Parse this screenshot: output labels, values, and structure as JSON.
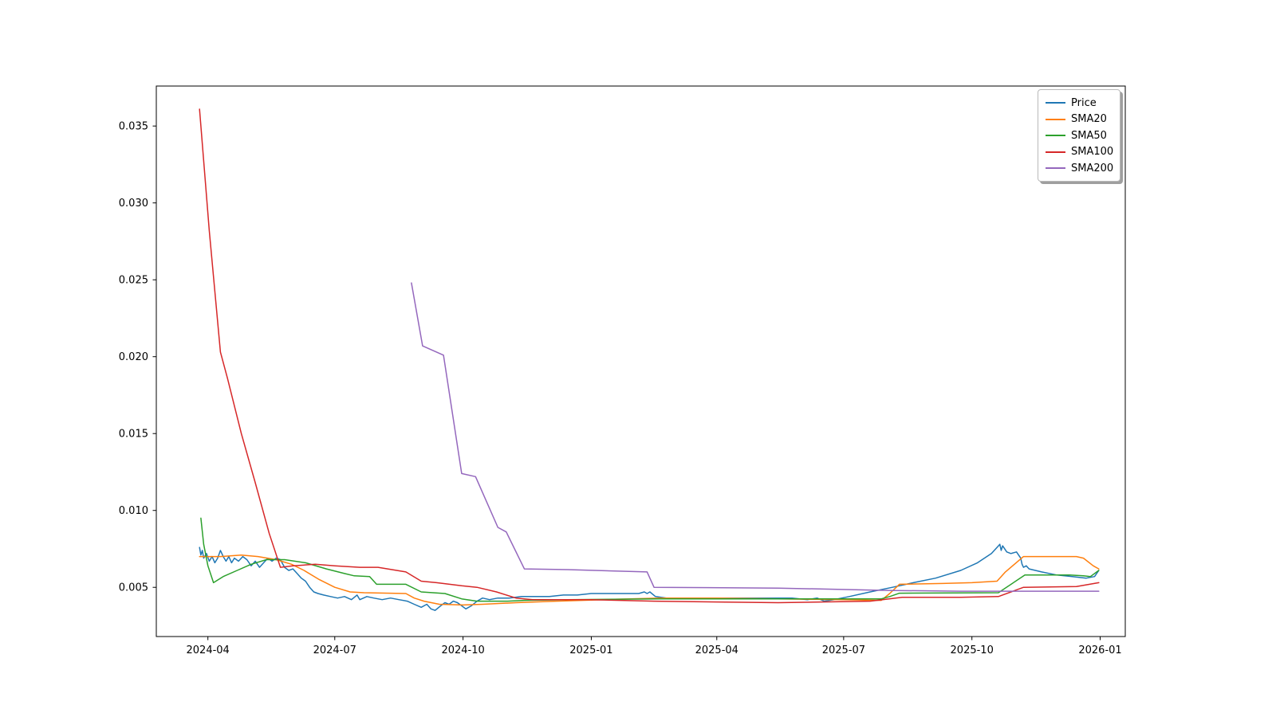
{
  "figure": {
    "background": "#ffffff",
    "plot_background": "#ffffff",
    "spine_color": "#000000",
    "tick_label_color": "#000000"
  },
  "chart_data": {
    "type": "line",
    "title": "",
    "xlabel": "",
    "ylabel": "",
    "grid": false,
    "legend_position": "upper right",
    "x_axis": {
      "range": [
        "2024-02-24",
        "2026-01-19"
      ],
      "tick_labels": [
        "2024-04",
        "2024-07",
        "2024-10",
        "2025-01",
        "2025-04",
        "2025-07",
        "2025-10",
        "2026-01"
      ],
      "tick_dates": [
        "2024-04-01",
        "2024-07-01",
        "2024-10-01",
        "2025-01-01",
        "2025-04-01",
        "2025-07-01",
        "2025-10-01",
        "2026-01-01"
      ]
    },
    "y_axis": {
      "range": [
        0.0018,
        0.0376
      ],
      "ticks": [
        0.005,
        0.01,
        0.015,
        0.02,
        0.025,
        0.03,
        0.035
      ],
      "tick_labels": [
        "0.005",
        "0.010",
        "0.015",
        "0.020",
        "0.025",
        "0.030",
        "0.035"
      ]
    },
    "series": [
      {
        "name": "Price",
        "color": "#1f77b4",
        "points": [
          [
            "2024-03-26",
            0.0076
          ],
          [
            "2024-03-27",
            0.0071
          ],
          [
            "2024-03-28",
            0.0074
          ],
          [
            "2024-03-29",
            0.0069
          ],
          [
            "2024-03-31",
            0.0072
          ],
          [
            "2024-04-02",
            0.0067
          ],
          [
            "2024-04-04",
            0.007
          ],
          [
            "2024-04-06",
            0.0066
          ],
          [
            "2024-04-08",
            0.0069
          ],
          [
            "2024-04-10",
            0.0074
          ],
          [
            "2024-04-12",
            0.007
          ],
          [
            "2024-04-14",
            0.0067
          ],
          [
            "2024-04-16",
            0.007
          ],
          [
            "2024-04-18",
            0.0066
          ],
          [
            "2024-04-20",
            0.0069
          ],
          [
            "2024-04-23",
            0.0067
          ],
          [
            "2024-04-26",
            0.007
          ],
          [
            "2024-04-29",
            0.0068
          ],
          [
            "2024-05-02",
            0.0064
          ],
          [
            "2024-05-05",
            0.0067
          ],
          [
            "2024-05-08",
            0.0063
          ],
          [
            "2024-05-11",
            0.0066
          ],
          [
            "2024-05-14",
            0.0069
          ],
          [
            "2024-05-17",
            0.0067
          ],
          [
            "2024-05-20",
            0.0069
          ],
          [
            "2024-05-23",
            0.0068
          ],
          [
            "2024-05-26",
            0.0063
          ],
          [
            "2024-05-29",
            0.0061
          ],
          [
            "2024-06-01",
            0.0062
          ],
          [
            "2024-06-04",
            0.0059
          ],
          [
            "2024-06-07",
            0.0056
          ],
          [
            "2024-06-10",
            0.0054
          ],
          [
            "2024-06-13",
            0.005
          ],
          [
            "2024-06-16",
            0.0047
          ],
          [
            "2024-06-19",
            0.0046
          ],
          [
            "2024-06-23",
            0.0045
          ],
          [
            "2024-06-28",
            0.0044
          ],
          [
            "2024-07-03",
            0.0043
          ],
          [
            "2024-07-08",
            0.0044
          ],
          [
            "2024-07-13",
            0.0042
          ],
          [
            "2024-07-17",
            0.0045
          ],
          [
            "2024-07-19",
            0.0042
          ],
          [
            "2024-07-24",
            0.0044
          ],
          [
            "2024-07-29",
            0.0043
          ],
          [
            "2024-08-04",
            0.0042
          ],
          [
            "2024-08-10",
            0.0043
          ],
          [
            "2024-08-16",
            0.0042
          ],
          [
            "2024-08-22",
            0.0041
          ],
          [
            "2024-08-27",
            0.0039
          ],
          [
            "2024-09-01",
            0.0037
          ],
          [
            "2024-09-05",
            0.0039
          ],
          [
            "2024-09-08",
            0.0036
          ],
          [
            "2024-09-11",
            0.0035
          ],
          [
            "2024-09-15",
            0.0038
          ],
          [
            "2024-09-18",
            0.004
          ],
          [
            "2024-09-21",
            0.0039
          ],
          [
            "2024-09-24",
            0.0041
          ],
          [
            "2024-09-27",
            0.004
          ],
          [
            "2024-09-30",
            0.0038
          ],
          [
            "2024-10-03",
            0.0036
          ],
          [
            "2024-10-07",
            0.0038
          ],
          [
            "2024-10-11",
            0.0041
          ],
          [
            "2024-10-15",
            0.0043
          ],
          [
            "2024-10-20",
            0.0042
          ],
          [
            "2024-10-26",
            0.0043
          ],
          [
            "2024-11-03",
            0.0043
          ],
          [
            "2024-11-12",
            0.0044
          ],
          [
            "2024-11-22",
            0.0044
          ],
          [
            "2024-12-02",
            0.0044
          ],
          [
            "2024-12-12",
            0.0045
          ],
          [
            "2024-12-22",
            0.0045
          ],
          [
            "2025-01-01",
            0.0046
          ],
          [
            "2025-01-12",
            0.0046
          ],
          [
            "2025-01-24",
            0.0046
          ],
          [
            "2025-02-04",
            0.0046
          ],
          [
            "2025-02-08",
            0.0047
          ],
          [
            "2025-02-10",
            0.0046
          ],
          [
            "2025-02-12",
            0.0047
          ],
          [
            "2025-02-16",
            0.0044
          ],
          [
            "2025-02-24",
            0.0043
          ],
          [
            "2025-03-10",
            0.0043
          ],
          [
            "2025-03-25",
            0.0043
          ],
          [
            "2025-04-10",
            0.0043
          ],
          [
            "2025-04-25",
            0.0043
          ],
          [
            "2025-05-10",
            0.0043
          ],
          [
            "2025-05-25",
            0.0043
          ],
          [
            "2025-06-05",
            0.0042
          ],
          [
            "2025-06-12",
            0.0043
          ],
          [
            "2025-06-17",
            0.0041
          ],
          [
            "2025-06-24",
            0.0042
          ],
          [
            "2025-07-05",
            0.0044
          ],
          [
            "2025-07-20",
            0.0047
          ],
          [
            "2025-08-05",
            0.005
          ],
          [
            "2025-08-20",
            0.0053
          ],
          [
            "2025-09-05",
            0.0056
          ],
          [
            "2025-09-23",
            0.0061
          ],
          [
            "2025-10-05",
            0.0066
          ],
          [
            "2025-10-15",
            0.0072
          ],
          [
            "2025-10-19",
            0.0076
          ],
          [
            "2025-10-21",
            0.0078
          ],
          [
            "2025-10-22",
            0.0074
          ],
          [
            "2025-10-23",
            0.0077
          ],
          [
            "2025-10-26",
            0.0073
          ],
          [
            "2025-10-29",
            0.0072
          ],
          [
            "2025-11-02",
            0.0073
          ],
          [
            "2025-11-05",
            0.0069
          ],
          [
            "2025-11-06",
            0.0065
          ],
          [
            "2025-11-07",
            0.0063
          ],
          [
            "2025-11-09",
            0.0064
          ],
          [
            "2025-11-11",
            0.0062
          ],
          [
            "2025-11-20",
            0.006
          ],
          [
            "2025-12-01",
            0.0058
          ],
          [
            "2025-12-12",
            0.0057
          ],
          [
            "2025-12-22",
            0.0056
          ],
          [
            "2025-12-28",
            0.0057
          ],
          [
            "2025-12-31",
            0.0061
          ]
        ]
      },
      {
        "name": "SMA20",
        "color": "#ff7f0e",
        "points": [
          [
            "2024-03-26",
            0.007
          ],
          [
            "2024-04-10",
            0.007
          ],
          [
            "2024-04-25",
            0.0071
          ],
          [
            "2024-05-07",
            0.007
          ],
          [
            "2024-05-20",
            0.0068
          ],
          [
            "2024-05-31",
            0.0065
          ],
          [
            "2024-06-09",
            0.0061
          ],
          [
            "2024-06-20",
            0.0055
          ],
          [
            "2024-07-01",
            0.005
          ],
          [
            "2024-07-12",
            0.0047
          ],
          [
            "2024-07-22",
            0.00465
          ],
          [
            "2024-08-21",
            0.0046
          ],
          [
            "2024-08-27",
            0.0043
          ],
          [
            "2024-09-03",
            0.0041
          ],
          [
            "2024-09-14",
            0.0039
          ],
          [
            "2024-10-01",
            0.00385
          ],
          [
            "2024-10-15",
            0.0039
          ],
          [
            "2024-11-08",
            0.004
          ],
          [
            "2024-12-07",
            0.0041
          ],
          [
            "2025-01-10",
            0.0042
          ],
          [
            "2025-02-19",
            0.0043
          ],
          [
            "2025-04-01",
            0.0043
          ],
          [
            "2025-05-15",
            0.00425
          ],
          [
            "2025-07-01",
            0.0042
          ],
          [
            "2025-07-28",
            0.00415
          ],
          [
            "2025-08-03",
            0.0046
          ],
          [
            "2025-08-10",
            0.0052
          ],
          [
            "2025-09-10",
            0.00525
          ],
          [
            "2025-10-01",
            0.0053
          ],
          [
            "2025-10-19",
            0.0054
          ],
          [
            "2025-10-25",
            0.006
          ],
          [
            "2025-11-07",
            0.007
          ],
          [
            "2025-11-25",
            0.007
          ],
          [
            "2025-12-15",
            0.007
          ],
          [
            "2025-12-20",
            0.0069
          ],
          [
            "2025-12-27",
            0.0064
          ],
          [
            "2025-12-31",
            0.0062
          ]
        ]
      },
      {
        "name": "SMA50",
        "color": "#2ca02c",
        "points": [
          [
            "2024-03-27",
            0.0095
          ],
          [
            "2024-03-29",
            0.0078
          ],
          [
            "2024-04-01",
            0.0064
          ],
          [
            "2024-04-05",
            0.0053
          ],
          [
            "2024-04-12",
            0.0057
          ],
          [
            "2024-04-22",
            0.0061
          ],
          [
            "2024-05-02",
            0.0065
          ],
          [
            "2024-05-13",
            0.0068
          ],
          [
            "2024-05-26",
            0.0068
          ],
          [
            "2024-06-10",
            0.0066
          ],
          [
            "2024-06-25",
            0.0062
          ],
          [
            "2024-07-08",
            0.0059
          ],
          [
            "2024-07-15",
            0.00575
          ],
          [
            "2024-07-26",
            0.0057
          ],
          [
            "2024-07-31",
            0.0052
          ],
          [
            "2024-08-21",
            0.0052
          ],
          [
            "2024-09-01",
            0.0047
          ],
          [
            "2024-09-18",
            0.0046
          ],
          [
            "2024-09-30",
            0.00425
          ],
          [
            "2024-10-11",
            0.0041
          ],
          [
            "2024-11-02",
            0.0041
          ],
          [
            "2024-11-14",
            0.00415
          ],
          [
            "2024-12-15",
            0.0042
          ],
          [
            "2025-02-19",
            0.00425
          ],
          [
            "2025-05-15",
            0.00425
          ],
          [
            "2025-07-28",
            0.00425
          ],
          [
            "2025-08-03",
            0.0044
          ],
          [
            "2025-08-10",
            0.00462
          ],
          [
            "2025-10-20",
            0.00465
          ],
          [
            "2025-11-08",
            0.0058
          ],
          [
            "2025-12-10",
            0.0058
          ],
          [
            "2025-12-20",
            0.00575
          ],
          [
            "2025-12-25",
            0.0057
          ],
          [
            "2025-12-31",
            0.0061
          ]
        ]
      },
      {
        "name": "SMA100",
        "color": "#d62728",
        "points": [
          [
            "2024-03-26",
            0.0361
          ],
          [
            "2024-04-02",
            0.0282
          ],
          [
            "2024-04-10",
            0.0203
          ],
          [
            "2024-04-15",
            0.0186
          ],
          [
            "2024-04-25",
            0.015
          ],
          [
            "2024-05-05",
            0.0118
          ],
          [
            "2024-05-15",
            0.0085
          ],
          [
            "2024-05-23",
            0.0063
          ],
          [
            "2024-06-01",
            0.0064
          ],
          [
            "2024-06-17",
            0.0065
          ],
          [
            "2024-07-01",
            0.0064
          ],
          [
            "2024-07-19",
            0.0063
          ],
          [
            "2024-08-01",
            0.0063
          ],
          [
            "2024-08-21",
            0.006
          ],
          [
            "2024-09-01",
            0.0054
          ],
          [
            "2024-09-12",
            0.0053
          ],
          [
            "2024-09-30",
            0.0051
          ],
          [
            "2024-10-11",
            0.005
          ],
          [
            "2024-10-25",
            0.0047
          ],
          [
            "2024-11-08",
            0.0043
          ],
          [
            "2024-11-20",
            0.0042
          ],
          [
            "2024-12-31",
            0.0042
          ],
          [
            "2025-02-15",
            0.0041
          ],
          [
            "2025-04-01",
            0.00405
          ],
          [
            "2025-05-15",
            0.004
          ],
          [
            "2025-07-20",
            0.0041
          ],
          [
            "2025-08-12",
            0.00435
          ],
          [
            "2025-09-23",
            0.00435
          ],
          [
            "2025-10-20",
            0.0044
          ],
          [
            "2025-11-07",
            0.005
          ],
          [
            "2025-12-15",
            0.00505
          ],
          [
            "2025-12-31",
            0.0053
          ]
        ]
      },
      {
        "name": "SMA200",
        "color": "#9467bd",
        "points": [
          [
            "2024-08-25",
            0.0248
          ],
          [
            "2024-09-02",
            0.0207
          ],
          [
            "2024-09-17",
            0.0201
          ],
          [
            "2024-09-30",
            0.0124
          ],
          [
            "2024-10-10",
            0.0122
          ],
          [
            "2024-10-26",
            0.0089
          ],
          [
            "2024-11-01",
            0.0086
          ],
          [
            "2024-11-14",
            0.0062
          ],
          [
            "2024-12-15",
            0.00615
          ],
          [
            "2025-02-10",
            0.006
          ],
          [
            "2025-02-15",
            0.005
          ],
          [
            "2025-05-15",
            0.00495
          ],
          [
            "2025-08-01",
            0.0048
          ],
          [
            "2025-09-23",
            0.00475
          ],
          [
            "2025-12-31",
            0.00475
          ]
        ]
      }
    ]
  }
}
